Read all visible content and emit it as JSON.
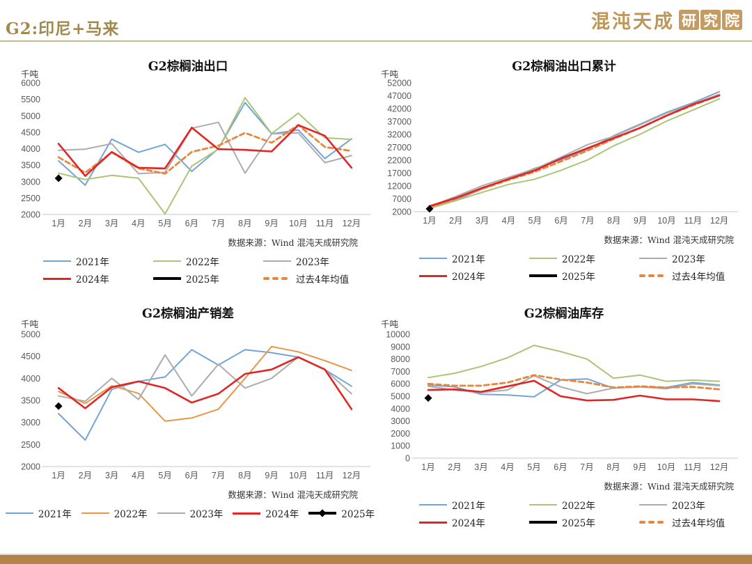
{
  "header": {
    "title": "G2:印尼+马来",
    "logo_main": "混沌天成",
    "logo_seal": "研究院"
  },
  "colors": {
    "accent_gold": "#A1884B",
    "header_rule": "#C5B98E",
    "footer_bar": "#B3834D",
    "logo_tan": "#C49B63",
    "axis": "#C9C9C9",
    "tick_text": "#595959",
    "blue_2021": "#74A4D6",
    "green_2022": "#A9C578",
    "gray_2023": "#ACACAC",
    "red_2024": "#E02525",
    "orange_2022": "#E7964A",
    "mean_orange": "#E8863C",
    "black_2025": "#000000"
  },
  "months": [
    "1月",
    "2月",
    "3月",
    "4月",
    "5月",
    "6月",
    "7月",
    "8月",
    "9月",
    "10月",
    "11月",
    "12月"
  ],
  "chart_data": [
    {
      "type": "line",
      "title": "G2棕榈油出口",
      "ylabel": "千吨",
      "source": "数据来源：Wind  混沌天成研究院",
      "ylim": [
        2000,
        6000
      ],
      "ytick_step": 500,
      "legend_layout": "grid",
      "categories": [
        "1月",
        "2月",
        "3月",
        "4月",
        "5月",
        "6月",
        "7月",
        "8月",
        "9月",
        "10月",
        "11月",
        "12月"
      ],
      "series": [
        {
          "name": "2021年",
          "color": "#74A4D6",
          "values": [
            3630,
            2890,
            4290,
            3890,
            4130,
            3310,
            4000,
            5400,
            4450,
            4570,
            3700,
            4300
          ]
        },
        {
          "name": "2022年",
          "color": "#A9C578",
          "values": [
            3255,
            3060,
            3190,
            3100,
            2020,
            3470,
            3985,
            5550,
            4460,
            5080,
            4330,
            4280
          ]
        },
        {
          "name": "2023年",
          "color": "#ACACAC",
          "values": [
            3950,
            3985,
            4150,
            3240,
            3280,
            4620,
            4800,
            3255,
            4450,
            4480,
            3575,
            3790
          ]
        },
        {
          "name": "2024年",
          "color": "#E02525",
          "values": [
            4150,
            3170,
            3900,
            3420,
            3400,
            4640,
            3985,
            3965,
            3915,
            4715,
            4390,
            3420
          ]
        },
        {
          "name": "2025年",
          "color": "#000000",
          "marker": "diamond",
          "values": [
            3100
          ]
        },
        {
          "name": "过去4年均值",
          "color": "#E8863C",
          "dashed": true,
          "values": [
            3740,
            3270,
            3890,
            3400,
            3240,
            3900,
            4090,
            4480,
            4180,
            4720,
            4050,
            3930
          ]
        }
      ]
    },
    {
      "type": "line",
      "title": "G2棕榈油出口累计",
      "ylabel": "千吨",
      "source": "数据来源：Wind  混沌天成研究院",
      "ylim": [
        2000,
        52000
      ],
      "ytick_step": 5000,
      "legend_layout": "grid",
      "categories": [
        "1月",
        "2月",
        "3月",
        "4月",
        "5月",
        "6月",
        "7月",
        "8月",
        "9月",
        "10月",
        "11月",
        "12月"
      ],
      "series": [
        {
          "name": "2021年",
          "color": "#74A4D6",
          "values": [
            3630,
            6520,
            10810,
            14700,
            18830,
            22140,
            26140,
            31540,
            35990,
            40560,
            44260,
            48560
          ]
        },
        {
          "name": "2022年",
          "color": "#A9C578",
          "values": [
            3255,
            6315,
            9505,
            12605,
            14625,
            18095,
            22080,
            27630,
            32090,
            37170,
            41500,
            45780
          ]
        },
        {
          "name": "2023年",
          "color": "#ACACAC",
          "values": [
            3950,
            7935,
            12085,
            15325,
            18605,
            23225,
            28025,
            31280,
            35730,
            40210,
            43785,
            47575
          ]
        },
        {
          "name": "2024年",
          "color": "#E02525",
          "values": [
            4150,
            7320,
            11220,
            14640,
            18040,
            22680,
            26665,
            30630,
            34545,
            39260,
            43650,
            47070
          ]
        },
        {
          "name": "2025年",
          "color": "#000000",
          "marker": "diamond",
          "values": [
            3100
          ]
        },
        {
          "name": "过去4年均值",
          "color": "#E8863C",
          "dashed": true,
          "values": [
            3745,
            7020,
            10905,
            14320,
            17525,
            21535,
            25730,
            30270,
            34590,
            39300,
            43300,
            47245
          ]
        }
      ]
    },
    {
      "type": "line",
      "title": "G2棕榈油产销差",
      "ylabel": "千吨",
      "source": "数据来源：Wind 混沌天成研究院",
      "ylim": [
        2000,
        5000
      ],
      "ytick_step": 500,
      "legend_layout": "row",
      "categories": [
        "1月",
        "2月",
        "3月",
        "4月",
        "5月",
        "6月",
        "7月",
        "8月",
        "9月",
        "10月",
        "11月",
        "12月"
      ],
      "series": [
        {
          "name": "2021年",
          "color": "#74A4D6",
          "values": [
            3200,
            2600,
            3750,
            3930,
            4030,
            4650,
            4300,
            4650,
            4580,
            4480,
            4200,
            3820
          ]
        },
        {
          "name": "2022年",
          "color": "#E7964A",
          "values": [
            3700,
            3430,
            3830,
            3660,
            3030,
            3100,
            3300,
            4000,
            4720,
            4600,
            4400,
            4180
          ]
        },
        {
          "name": "2023年",
          "color": "#ACACAC",
          "values": [
            3600,
            3480,
            4000,
            3520,
            4530,
            3600,
            4320,
            3780,
            4000,
            4480,
            4200,
            3650
          ]
        },
        {
          "name": "2024年",
          "color": "#E02525",
          "values": [
            3780,
            3320,
            3800,
            3930,
            3780,
            3450,
            3650,
            4100,
            4200,
            4480,
            4200,
            3300
          ]
        },
        {
          "name": "2025年",
          "color": "#000000",
          "marker": "diamond",
          "values": [
            3370
          ]
        }
      ]
    },
    {
      "type": "line",
      "title": "G2棕榈油库存",
      "ylabel": "千吨",
      "source": "数据来源：Wind  混沌天成研究院",
      "ylim": [
        0,
        10000
      ],
      "ytick_step": 1000,
      "legend_layout": "grid",
      "categories": [
        "1月",
        "2月",
        "3月",
        "4月",
        "5月",
        "6月",
        "7月",
        "8月",
        "9月",
        "10月",
        "11月",
        "12月"
      ],
      "series": [
        {
          "name": "2021年",
          "color": "#74A4D6",
          "values": [
            5900,
            5750,
            5150,
            5100,
            4950,
            6300,
            6400,
            5650,
            5750,
            5700,
            6100,
            5900
          ]
        },
        {
          "name": "2022年",
          "color": "#A9C578",
          "values": [
            6500,
            6850,
            7400,
            8100,
            9100,
            8600,
            8000,
            6450,
            6700,
            6200,
            6300,
            6200
          ]
        },
        {
          "name": "2023年",
          "color": "#ACACAC",
          "values": [
            5800,
            5500,
            5300,
            5500,
            6650,
            5750,
            5200,
            5650,
            5750,
            5600,
            6000,
            5850
          ]
        },
        {
          "name": "2024年",
          "color": "#E02525",
          "values": [
            5500,
            5550,
            5350,
            5800,
            6250,
            5000,
            4650,
            4700,
            5050,
            4750,
            4750,
            4600
          ]
        },
        {
          "name": "2025年",
          "color": "#000000",
          "marker": "diamond",
          "values": [
            4850
          ]
        },
        {
          "name": "过去4年均值",
          "color": "#E8863C",
          "dashed": true,
          "values": [
            6000,
            5850,
            5850,
            6100,
            6700,
            6350,
            6100,
            5700,
            5800,
            5700,
            5750,
            5550
          ]
        }
      ]
    }
  ]
}
